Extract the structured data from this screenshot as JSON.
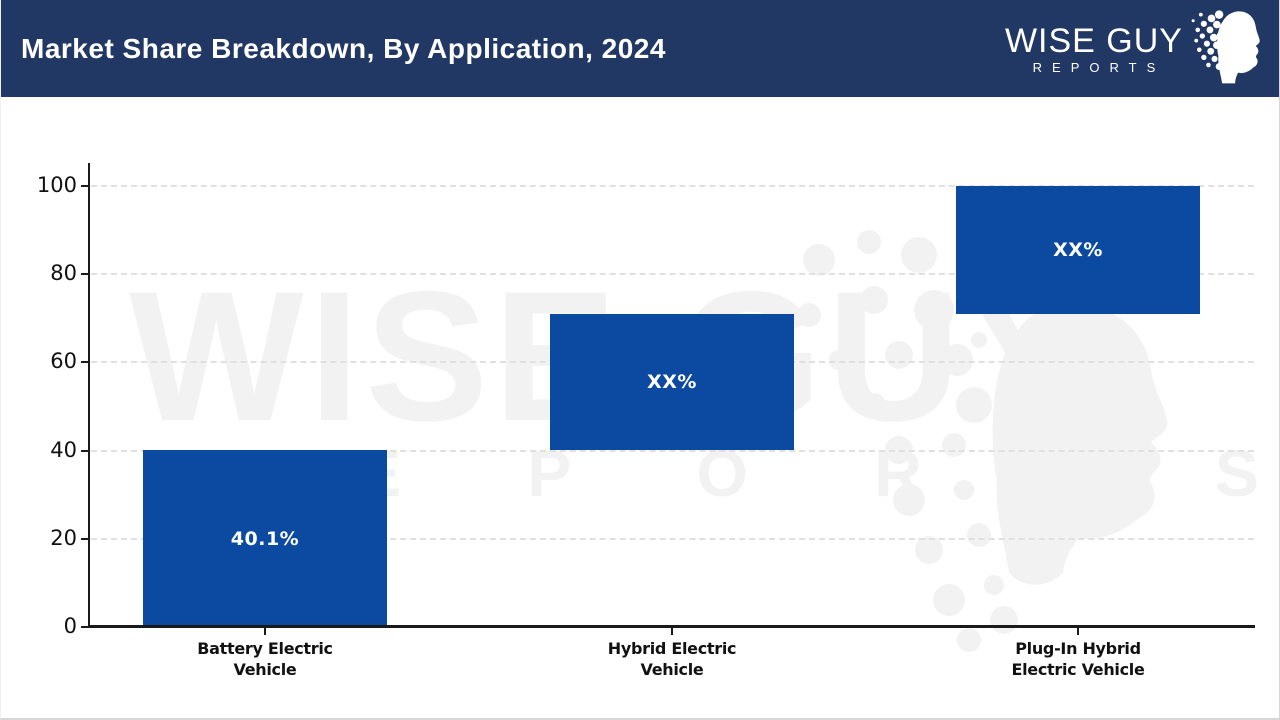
{
  "header": {
    "title": "Market Share Breakdown, By Application, 2024",
    "bg_color": "#213764",
    "logo": {
      "line1": "WISE GUY",
      "line2": "REPORTS"
    }
  },
  "watermark": {
    "line1": "WISE GUY",
    "line2": "R E P O R T S"
  },
  "colors": {
    "bar": "#0c49a1",
    "header_bg": "#213764",
    "gridline": "#e0e0e0",
    "axis": "#1a1a1a",
    "bar_label_text": "#ffffff",
    "watermark": "#f2f2f2"
  },
  "chart_data": {
    "type": "bar",
    "subtype": "stacked-waterfall-segments",
    "title": "Market Share Breakdown, By Application, 2024",
    "categories": [
      "Battery Electric\nVehicle",
      "Hybrid Electric\nVehicle",
      "Plug-In Hybrid\nElectric Vehicle"
    ],
    "segments": [
      {
        "category": "Battery Electric Vehicle",
        "start": 0,
        "end": 40.1,
        "label": "40.1%"
      },
      {
        "category": "Hybrid Electric Vehicle",
        "start": 40.1,
        "end": 71,
        "label": "XX%"
      },
      {
        "category": "Plug-In Hybrid Electric Vehicle",
        "start": 71,
        "end": 100,
        "label": "XX%"
      }
    ],
    "yticks": [
      0,
      20,
      40,
      60,
      80,
      100
    ],
    "ylim": [
      0,
      105
    ],
    "xlabel": "",
    "ylabel": "",
    "grid": "dashed-horizontal",
    "legend": "none"
  }
}
